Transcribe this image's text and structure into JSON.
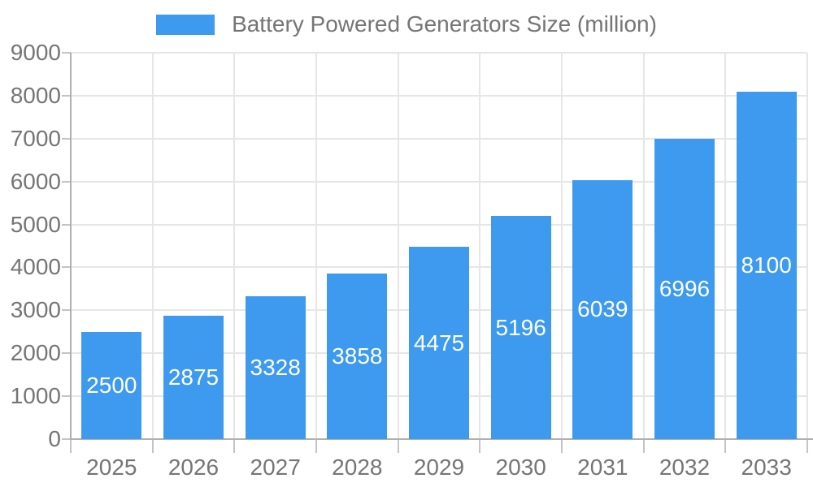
{
  "chart_data": {
    "type": "bar",
    "title": "Battery Powered Generators Size (million)",
    "legend": {
      "label": "Battery Powered Generators Size (million)",
      "position": "top-center"
    },
    "categories": [
      "2025",
      "2026",
      "2027",
      "2028",
      "2029",
      "2030",
      "2031",
      "2032",
      "2033"
    ],
    "series": [
      {
        "name": "Battery Powered Generators Size (million)",
        "values": [
          2500,
          2875,
          3328,
          3858,
          4475,
          5196,
          6039,
          6996,
          8100
        ]
      }
    ],
    "bar_value_labels": [
      "2500",
      "2875",
      "3328",
      "3858",
      "4475",
      "5196",
      "6039",
      "6996",
      "8100"
    ],
    "xlabel": "",
    "ylabel": "",
    "ylim": [
      0,
      9000
    ],
    "ytick_labels": [
      "0",
      "1000",
      "2000",
      "3000",
      "4000",
      "5000",
      "6000",
      "7000",
      "8000",
      "9000"
    ],
    "yticks": [
      0,
      1000,
      2000,
      3000,
      4000,
      5000,
      6000,
      7000,
      8000,
      9000
    ],
    "grid": "both",
    "value_labels_inside_bars": true
  },
  "colors": {
    "bar": "#3d9aee",
    "grid": "#e6e6e6",
    "axis": "#b0b0b0",
    "tick": "#c4c4c4",
    "text": "#757575",
    "bar_label": "#ffffff",
    "background": "#ffffff"
  }
}
